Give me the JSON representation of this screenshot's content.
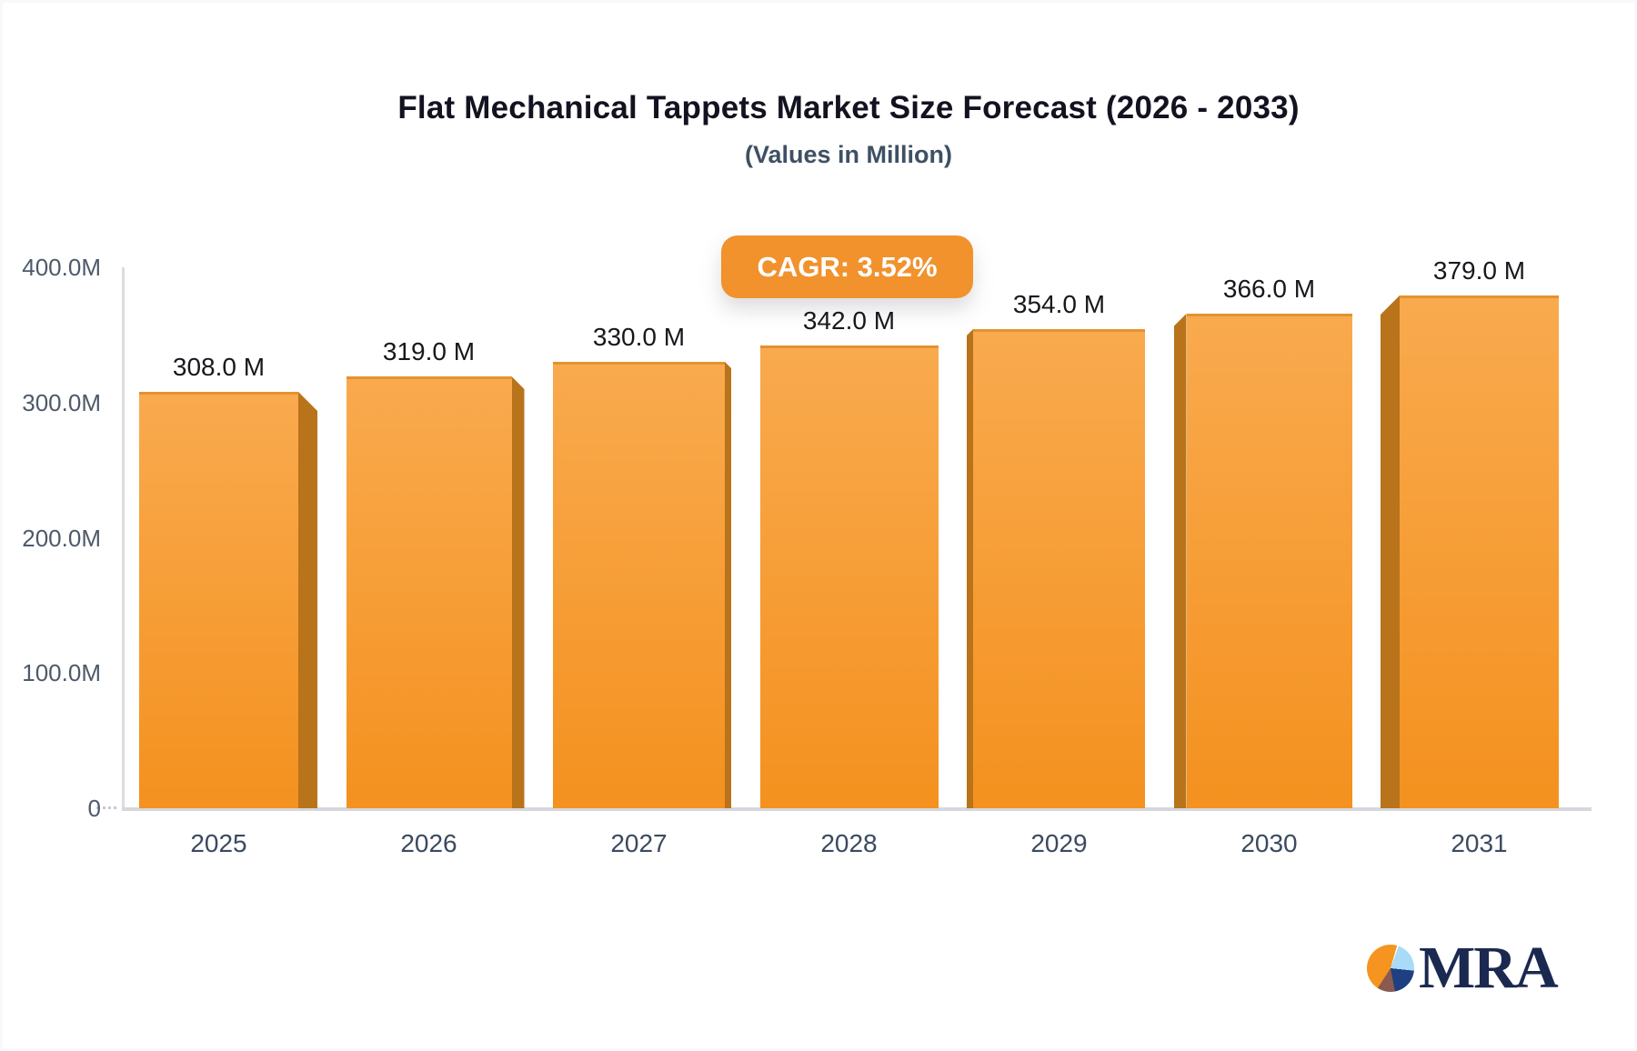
{
  "page": {
    "title": "Flat Mechanical Tappets Market Size Forecast (2026 - 2033)",
    "subtitle": "(Values in Million)",
    "cagr_badge": "CAGR: 3.52%",
    "logo_text": "MRA"
  },
  "colors": {
    "bar_front_top": "#f9aa4e",
    "bar_front_bottom": "#f4911f",
    "bar_top_edge": "#e3922f",
    "bar_side": "#b9731a",
    "badge_bg": "#f1922d",
    "accent_orange": "#f5941f",
    "logo_navy": "#1b2950",
    "axis_text": "#4e5a6a",
    "x_label_text": "#3b4a5f",
    "value_label_text": "#17181d"
  },
  "chart_data": {
    "type": "bar",
    "title": "Flat Mechanical Tappets Market Size Forecast (2026 - 2033)",
    "subtitle": "(Values in Million)",
    "cagr_label": "CAGR: 3.52%",
    "categories": [
      "2025",
      "2026",
      "2027",
      "2028",
      "2029",
      "2030",
      "2031"
    ],
    "values": [
      308,
      319,
      330,
      342,
      354,
      366,
      379
    ],
    "value_labels": [
      "308.0 M",
      "319.0 M",
      "330.0 M",
      "342.0 M",
      "354.0 M",
      "366.0 M",
      "379.0 M"
    ],
    "unit": "M",
    "xlabel": "",
    "ylabel": "",
    "ylim": [
      0,
      400
    ],
    "y_ticks": [
      {
        "label": "0",
        "value": 0
      },
      {
        "label": "100.0M",
        "value": 100
      },
      {
        "label": "200.0M",
        "value": 200
      },
      {
        "label": "300.0M",
        "value": 300
      },
      {
        "label": "400.0M",
        "value": 400
      }
    ],
    "grid": false,
    "legend": false,
    "style": "3d-bars, orange gradient, perspective toward center"
  }
}
